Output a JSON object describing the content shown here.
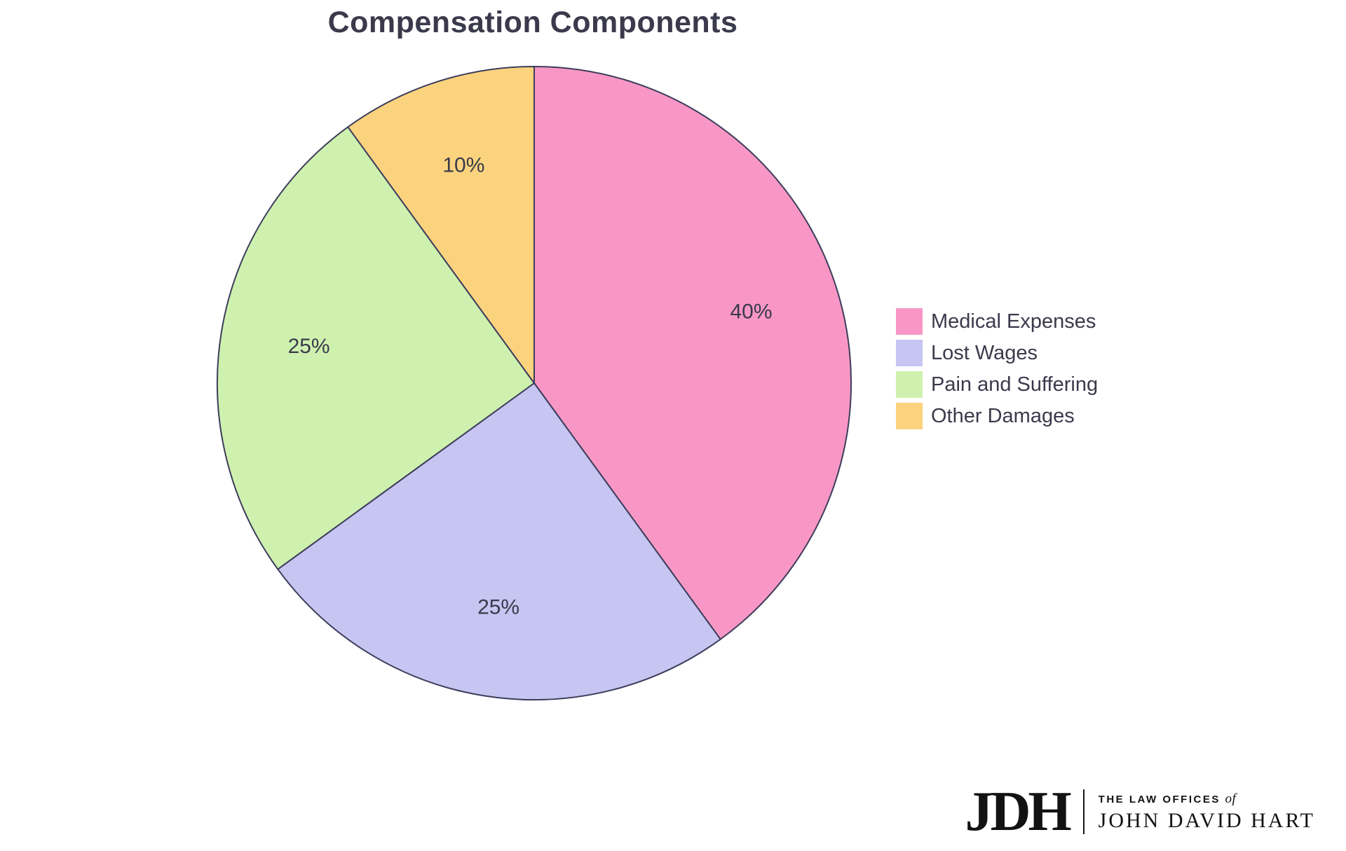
{
  "chart_data": {
    "type": "pie",
    "title": "Compensation Components",
    "labels": [
      "Medical Expenses",
      "Lost Wages",
      "Pain and Suffering",
      "Other Damages"
    ],
    "values": [
      40,
      25,
      25,
      10
    ],
    "percent_labels": [
      "40%",
      "25%",
      "25%",
      "10%"
    ],
    "colors": [
      "#F897C5",
      "#C7C5F1",
      "#CFF1AF",
      "#FBD37E"
    ],
    "stroke_color": "#3D3D5C",
    "label_color": "#3A3A4C",
    "start_angle_deg": 0,
    "direction": "clockwise",
    "legend_position": "right"
  },
  "branding": {
    "monogram": "JDH",
    "line1": "THE LAW OFFICES",
    "line1_of": "of",
    "line2": "JOHN DAVID HART"
  }
}
